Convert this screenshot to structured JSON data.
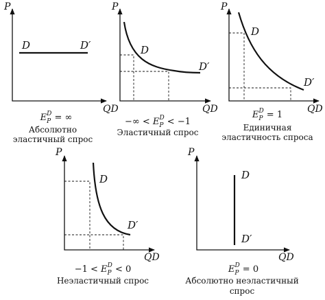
{
  "panels": [
    {
      "id": "perfectly-elastic",
      "y_axis_label": "P",
      "x_axis_label": "QD",
      "curve_start_label": "D",
      "curve_end_label": "D′",
      "formula": {
        "prefix": "",
        "symbol": "E",
        "sub": "P",
        "sup": "D",
        "suffix": " = ∞"
      },
      "caption_lines": [
        "Абсолютно",
        "эластичный спрос"
      ]
    },
    {
      "id": "elastic",
      "y_axis_label": "P",
      "x_axis_label": "QD",
      "curve_start_label": "D",
      "curve_end_label": "D′",
      "formula": {
        "prefix": "−∞ < ",
        "symbol": "E",
        "sub": "P",
        "sup": "D",
        "suffix": " < −1"
      },
      "caption_lines": [
        "Эластичный спрос"
      ]
    },
    {
      "id": "unit-elastic",
      "y_axis_label": "P",
      "x_axis_label": "QD",
      "curve_start_label": "D",
      "curve_end_label": "D′",
      "formula": {
        "prefix": "",
        "symbol": "E",
        "sub": "P",
        "sup": "D",
        "suffix": " = 1"
      },
      "caption_lines": [
        "Единичная",
        "эластичность спроса"
      ]
    },
    {
      "id": "inelastic",
      "y_axis_label": "P",
      "x_axis_label": "QD",
      "curve_start_label": "D",
      "curve_end_label": "D′",
      "formula": {
        "prefix": "−1 < ",
        "symbol": "E",
        "sub": "P",
        "sup": "D",
        "suffix": " < 0"
      },
      "caption_lines": [
        "Неэластичный спрос"
      ]
    },
    {
      "id": "perfectly-inelastic",
      "y_axis_label": "P",
      "x_axis_label": "QD",
      "curve_start_label": "D",
      "curve_end_label": "D′",
      "formula": {
        "prefix": "",
        "symbol": "E",
        "sub": "P",
        "sup": "D",
        "suffix": " = 0"
      },
      "caption_lines": [
        "Абсолютно неэластичный",
        "спрос"
      ]
    }
  ]
}
